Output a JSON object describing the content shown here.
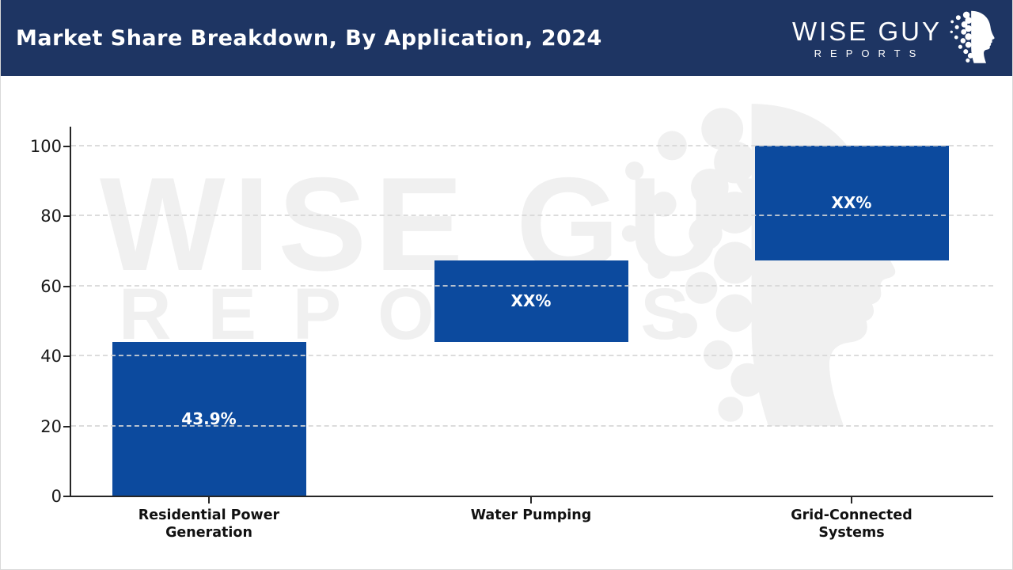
{
  "header": {
    "title": "Market Share Breakdown, By Application, 2024",
    "background_color": "#1e3563",
    "logo": {
      "line1": "WISE GUY",
      "line2": "REPORTS"
    }
  },
  "watermark": {
    "line1": "WISE GUY",
    "line2": "REPORTS"
  },
  "chart_data": {
    "type": "bar",
    "subtype": "waterfall-segments",
    "title": "Market Share Breakdown, By Application, 2024",
    "xlabel": "",
    "ylabel": "",
    "ylim": [
      0,
      105
    ],
    "y_ticks": [
      0,
      20,
      40,
      60,
      80,
      100
    ],
    "grid": "horizontal-dashed",
    "legend": "none",
    "bar_color": "#0c4a9e",
    "bar_label_color": "#ffffff",
    "categories": [
      "Residential Power\nGeneration",
      "Water Pumping",
      "Grid-Connected\nSystems"
    ],
    "series": [
      {
        "name": "Market Share",
        "segments": [
          {
            "category": "Residential Power Generation",
            "start": 0,
            "end": 43.9,
            "label": "43.9%"
          },
          {
            "category": "Water Pumping",
            "start": 43.9,
            "end": 67.3,
            "label": "XX%"
          },
          {
            "category": "Grid-Connected Systems",
            "start": 67.3,
            "end": 100,
            "label": "XX%"
          }
        ]
      }
    ]
  }
}
